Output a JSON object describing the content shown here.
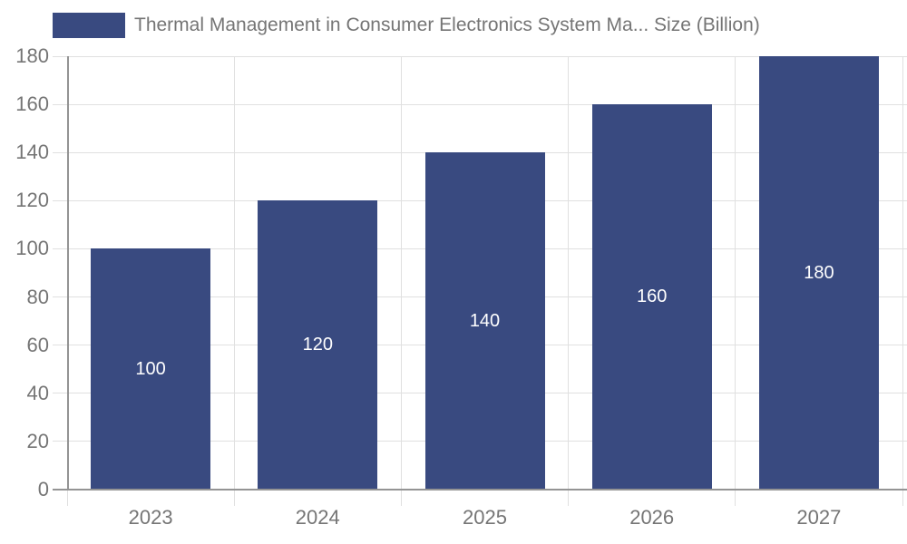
{
  "legend": {
    "label": "Thermal Management in Consumer Electronics System Ma... Size (Billion)"
  },
  "chart_data": {
    "type": "bar",
    "title": "",
    "series_name": "Thermal Management in Consumer Electronics System Ma... Size (Billion)",
    "categories": [
      "2023",
      "2024",
      "2025",
      "2026",
      "2027"
    ],
    "values": [
      100,
      120,
      140,
      160,
      180
    ],
    "xlabel": "",
    "ylabel": "",
    "ylim": [
      0,
      180
    ],
    "yticks": [
      0,
      20,
      40,
      60,
      80,
      100,
      120,
      140,
      160,
      180
    ],
    "grid": true,
    "legend_position": "top-left",
    "bar_label_position": "center",
    "colors": {
      "bar": "#394A80",
      "bar_label": "#FFFFFF",
      "grid_line": "#E0E0E0",
      "axis_line": "#949494",
      "axis_text": "#757575",
      "legend_text": "#757575",
      "background": "#FFFFFF"
    }
  }
}
